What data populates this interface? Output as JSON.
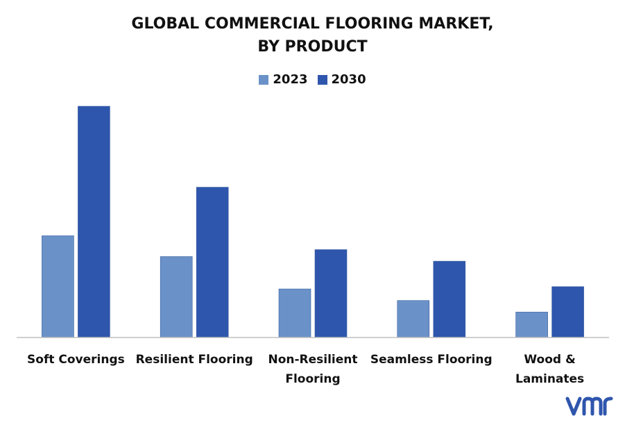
{
  "chart_data": {
    "type": "bar",
    "title": "GLOBAL COMMERCIAL FLOORING MARKET, BY PRODUCT",
    "title_lines": [
      "GLOBAL COMMERCIAL FLOORING MARKET,",
      "BY PRODUCT"
    ],
    "categories": [
      [
        "Soft Coverings"
      ],
      [
        "Resilient Flooring"
      ],
      [
        "Non-Resilient",
        "Flooring"
      ],
      [
        "Seamless Flooring"
      ],
      [
        "Wood &",
        "Laminates"
      ]
    ],
    "series": [
      {
        "name": "2023",
        "color": "#6a92c8",
        "values": [
          44,
          35,
          21,
          16,
          11
        ]
      },
      {
        "name": "2030",
        "color": "#2f56ad",
        "values": [
          100,
          65,
          38,
          33,
          22
        ]
      }
    ],
    "ylim": [
      0,
      100
    ],
    "grid": false,
    "legend_position": "top-center"
  },
  "logo": {
    "text": "vmr",
    "color": "#2f56ad"
  }
}
